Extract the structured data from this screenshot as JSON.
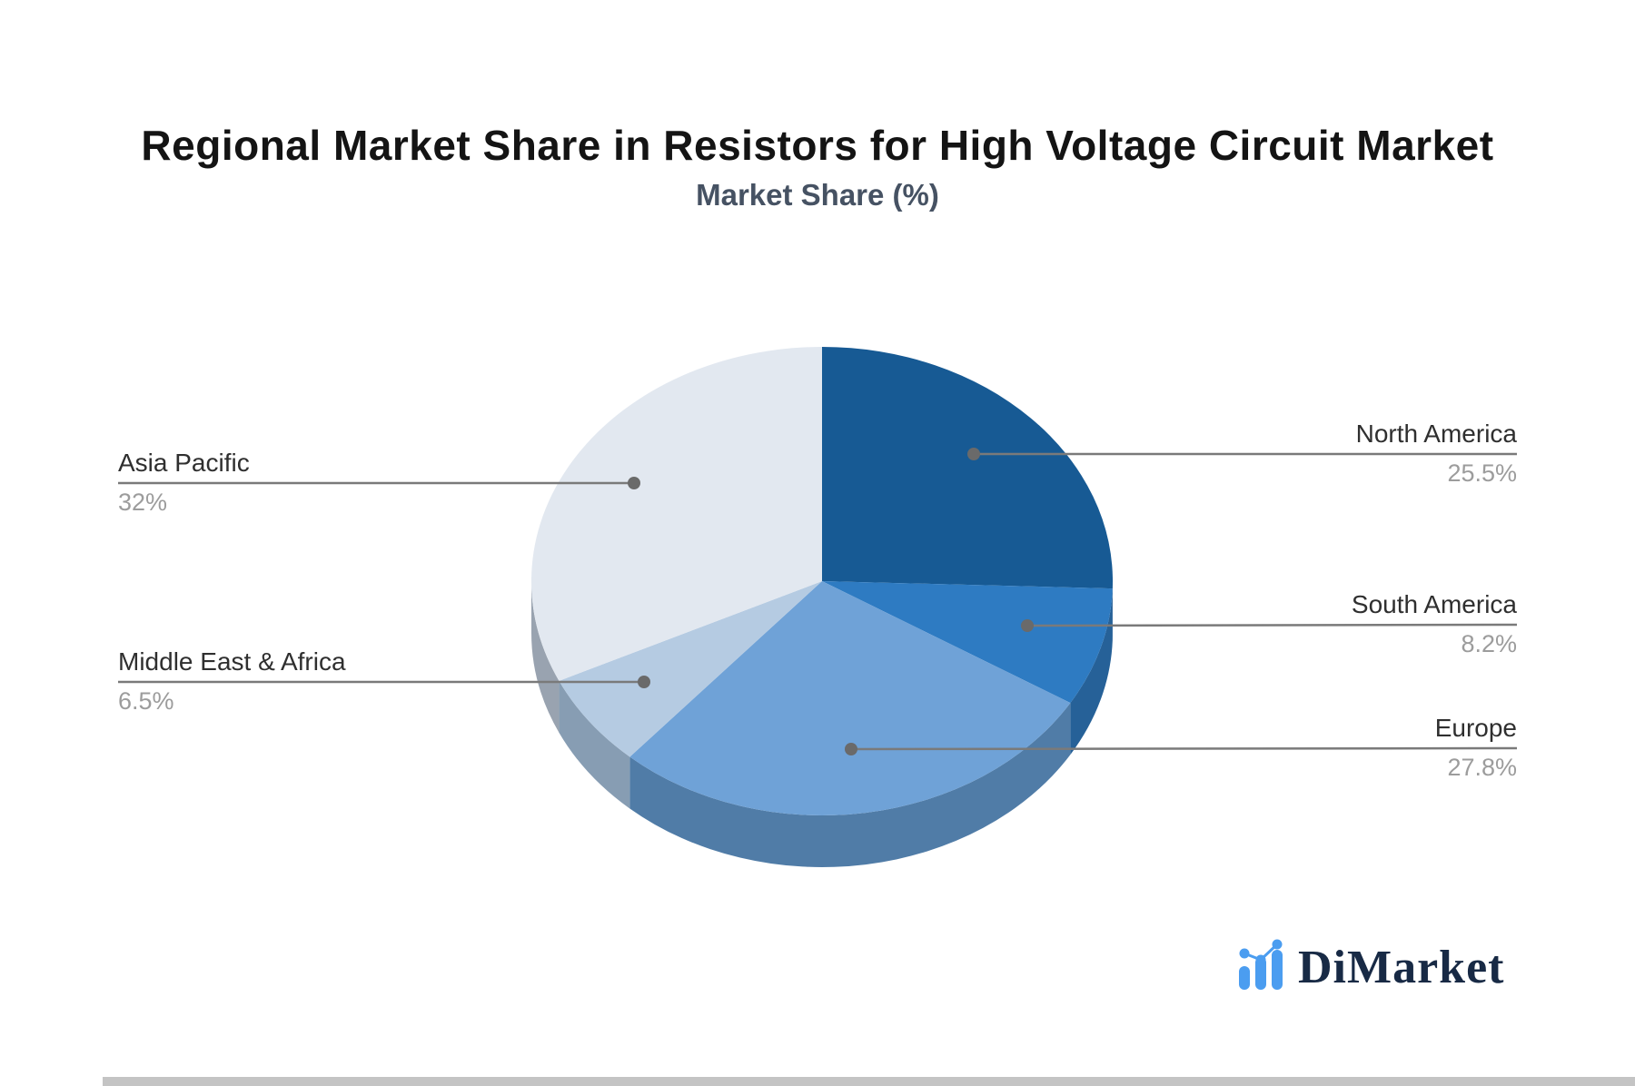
{
  "header": {
    "title": "Regional Market Share in Resistors for High Voltage Circuit Market",
    "subtitle": "Market Share (%)"
  },
  "chart_data": {
    "type": "pie",
    "style": "3d-pie",
    "title": "Regional Market Share in Resistors for High Voltage Circuit Market",
    "subtitle": "Market Share (%)",
    "unit": "%",
    "start_angle": "12-o-clock",
    "direction": "clockwise",
    "legend_position": "none",
    "slices": [
      {
        "label": "North America",
        "value": 25.5,
        "display": "25.5%",
        "color": "#175A94",
        "side_color": "#12497C"
      },
      {
        "label": "South America",
        "value": 8.2,
        "display": "8.2%",
        "color": "#2E7BC2",
        "side_color": "#266198"
      },
      {
        "label": "Europe",
        "value": 27.8,
        "display": "27.8%",
        "color": "#6FA2D7",
        "side_color": "#507CA7"
      },
      {
        "label": "Middle East & Africa",
        "value": 6.5,
        "display": "6.5%",
        "color": "#B5CBE2",
        "side_color": "#879DB3"
      },
      {
        "label": "Asia Pacific",
        "value": 32,
        "display": "32%",
        "color": "#E2E8F0",
        "side_color": "#99A3B0"
      }
    ],
    "label_style": {
      "name_color": "#2F2F2F",
      "value_color": "#9C9C9C",
      "line_color": "#7A7A7A",
      "dot_color": "#6A6A6A"
    }
  },
  "branding": {
    "logo_text": "DiMarket",
    "logo_text_color": "#182A45",
    "icon_color": "#4B9DF0"
  }
}
